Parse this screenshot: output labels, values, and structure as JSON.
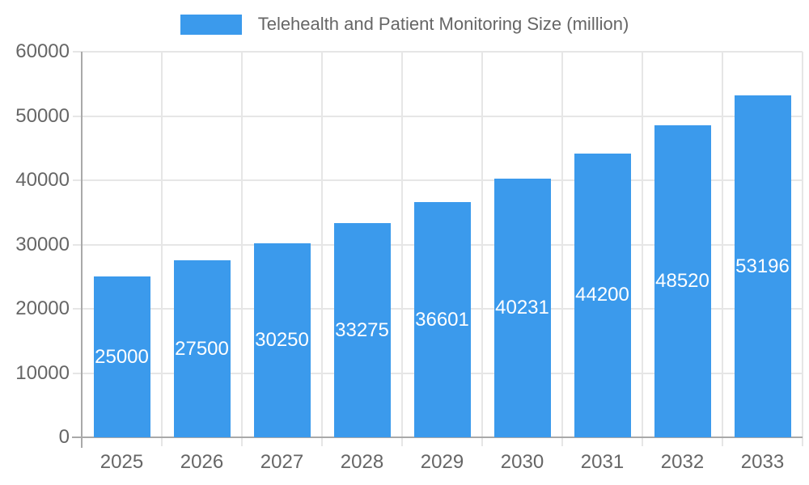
{
  "chart_data": {
    "type": "bar",
    "title": "Telehealth and Patient Monitoring Size (million)",
    "categories": [
      "2025",
      "2026",
      "2027",
      "2028",
      "2029",
      "2030",
      "2031",
      "2032",
      "2033"
    ],
    "series": [
      {
        "name": "Telehealth and Patient Monitoring Size (million)",
        "color": "#3b9aec",
        "values": [
          25000,
          27500,
          30250,
          33275,
          36601,
          40231,
          44200,
          48520,
          53196
        ]
      }
    ],
    "xlabel": "",
    "ylabel": "",
    "ylim": [
      0,
      60000
    ],
    "yticks": [
      0,
      10000,
      20000,
      30000,
      40000,
      50000,
      60000
    ],
    "grid": true,
    "legend_position": "top",
    "value_labels": "inside-center"
  },
  "colors": {
    "bar": "#3b9aec",
    "bar_label": "#ffffff",
    "axis_text": "#666666",
    "grid": "#e6e6e6",
    "axis_line": "#a9a9a9",
    "background": "#ffffff"
  }
}
